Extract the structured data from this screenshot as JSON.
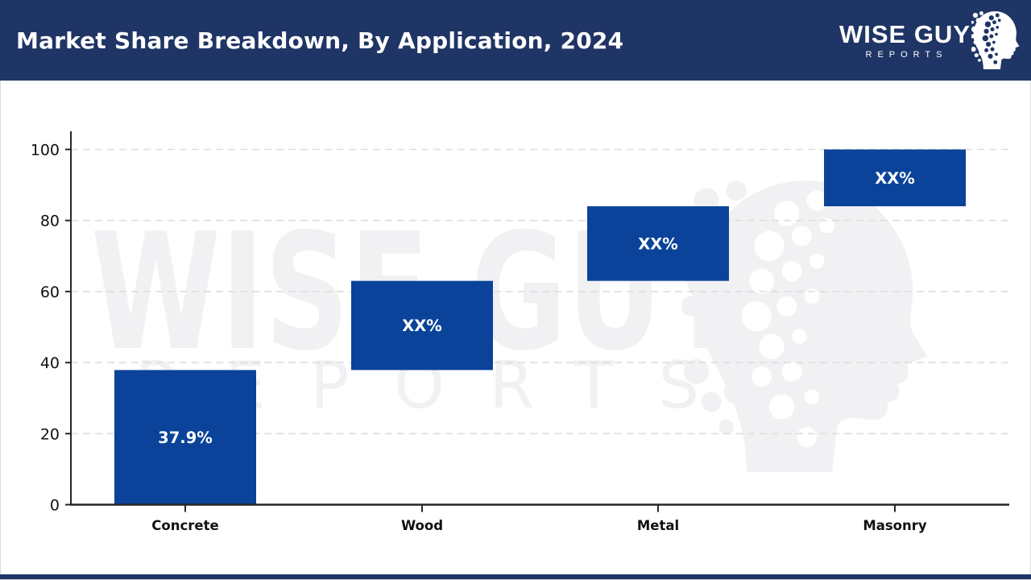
{
  "header": {
    "title": "Market Share Breakdown, By Application, 2024",
    "logo": {
      "name": "WISE GUY",
      "subname": "REPORTS"
    }
  },
  "watermark": {
    "name": "WISE GUY",
    "subname": "REPORTS"
  },
  "chart_data": {
    "type": "bar",
    "subtype": "floating-waterfall-bars",
    "title": "Market Share Breakdown, By Application, 2024",
    "categories": [
      "Concrete",
      "Wood",
      "Metal",
      "Masonry"
    ],
    "segments": [
      {
        "category": "Concrete",
        "start": 0,
        "end": 37.9,
        "label": "37.9%"
      },
      {
        "category": "Wood",
        "start": 37.9,
        "end": 63,
        "label": "XX%"
      },
      {
        "category": "Metal",
        "start": 63,
        "end": 84,
        "label": "XX%"
      },
      {
        "category": "Masonry",
        "start": 84,
        "end": 100,
        "label": "XX%"
      }
    ],
    "y_ticks": [
      0,
      20,
      40,
      60,
      80,
      100
    ],
    "ylim": [
      0,
      105
    ],
    "xlabel": "",
    "ylabel": "",
    "grid": "dashed-horizontal",
    "legend": "none",
    "bar_color_hex": "#0a4399",
    "bar_label_color_hex": "#ffffff"
  },
  "colors": {
    "header_bg": "#1f3565",
    "bar": "#0a4399",
    "gridline": "#dedede",
    "axis": "#262626",
    "tick_text": "#111111",
    "watermark": "#f1f1f4"
  }
}
